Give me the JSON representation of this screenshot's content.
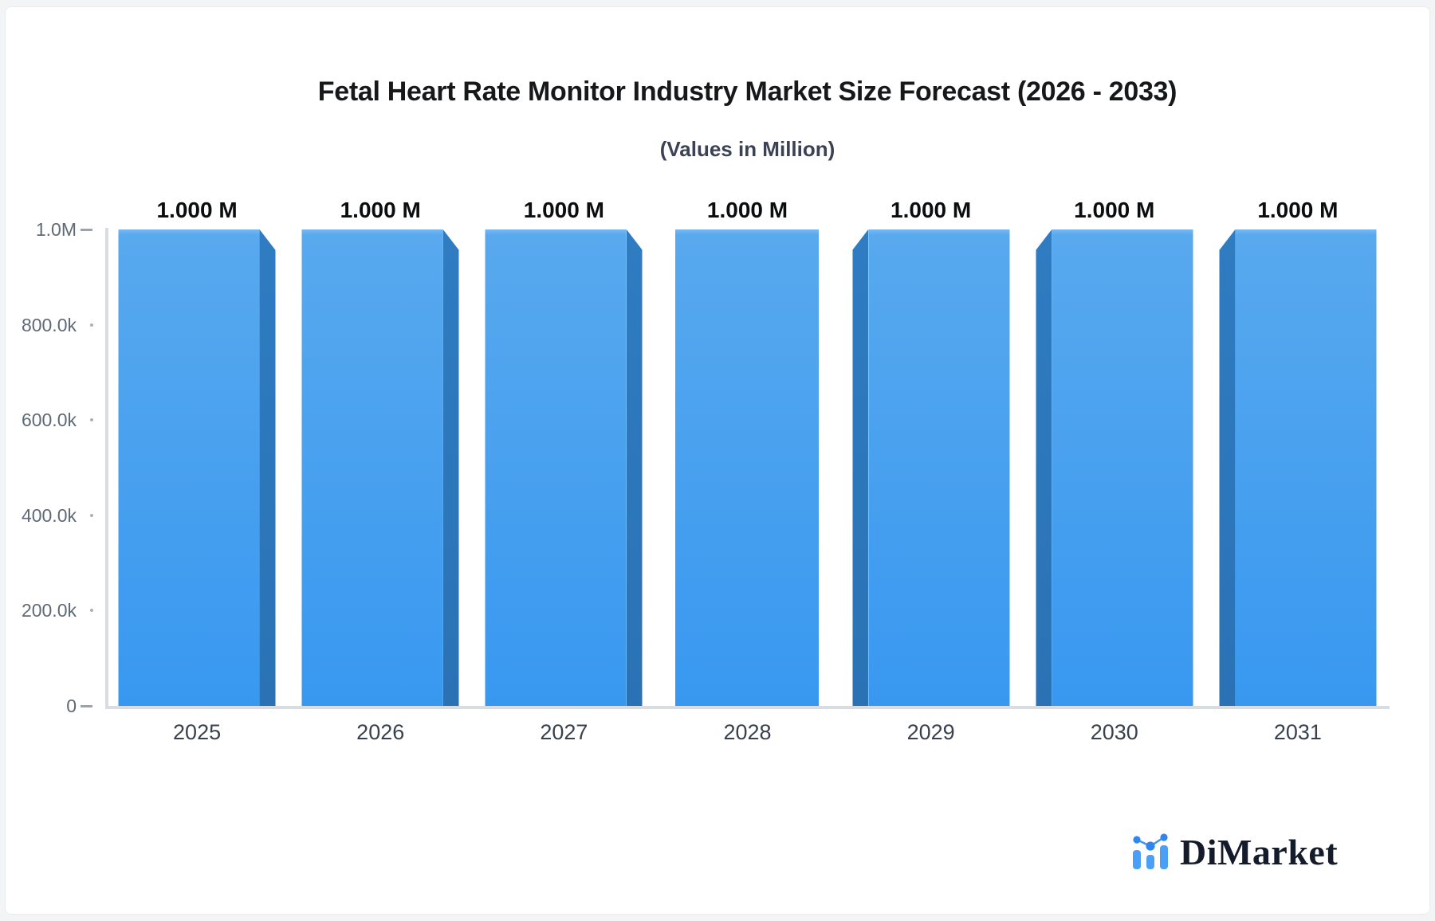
{
  "title": "Fetal Heart Rate Monitor Industry Market Size Forecast (2026 - 2033)",
  "subtitle": "(Values in Million)",
  "logo": {
    "text": "DiMarket",
    "icon": "bar-chart-trend-icon"
  },
  "colors": {
    "bar_face_top": "#58a9ee",
    "bar_face_bottom": "#3898f0",
    "bar_face_highlight": "#79b9f2",
    "bar_side": "#2e7abf",
    "axis_line": "#d9dce1",
    "major_tick": "#9ba3b0",
    "minor_tick": "#aab1bb",
    "y_label": "#5f6a76",
    "x_label": "#39424c",
    "value_label": "#0c0d0e",
    "title": "#17181a",
    "subtitle": "#3a4254",
    "logo_text": "#141c2b",
    "logo_blue": "#4aa0f7",
    "card_background": "#ffffff"
  },
  "chart_data": {
    "type": "bar",
    "title": "Fetal Heart Rate Monitor Industry Market Size Forecast (2026 - 2033)",
    "subtitle": "(Values in Million)",
    "categories": [
      "2025",
      "2026",
      "2027",
      "2028",
      "2029",
      "2030",
      "2031"
    ],
    "values": [
      1000000,
      1000000,
      1000000,
      1000000,
      1000000,
      1000000,
      1000000
    ],
    "value_labels": [
      "1.000 M",
      "1.000 M",
      "1.000 M",
      "1.000 M",
      "1.000 M",
      "1.000 M",
      "1.000 M"
    ],
    "xlabel": "",
    "ylabel": "",
    "ylim": [
      0,
      1000000
    ],
    "y_ticks": [
      {
        "label": "1.0M",
        "value": 1000000,
        "major": true
      },
      {
        "label": "800.0k",
        "value": 800000,
        "major": false
      },
      {
        "label": "600.0k",
        "value": 600000,
        "major": false
      },
      {
        "label": "400.0k",
        "value": 400000,
        "major": false
      },
      {
        "label": "200.0k",
        "value": 200000,
        "major": false
      },
      {
        "label": "0",
        "value": 0,
        "major": true
      }
    ],
    "grid": false,
    "legend": false,
    "bar_style": "3d-perspective-toward-center"
  }
}
